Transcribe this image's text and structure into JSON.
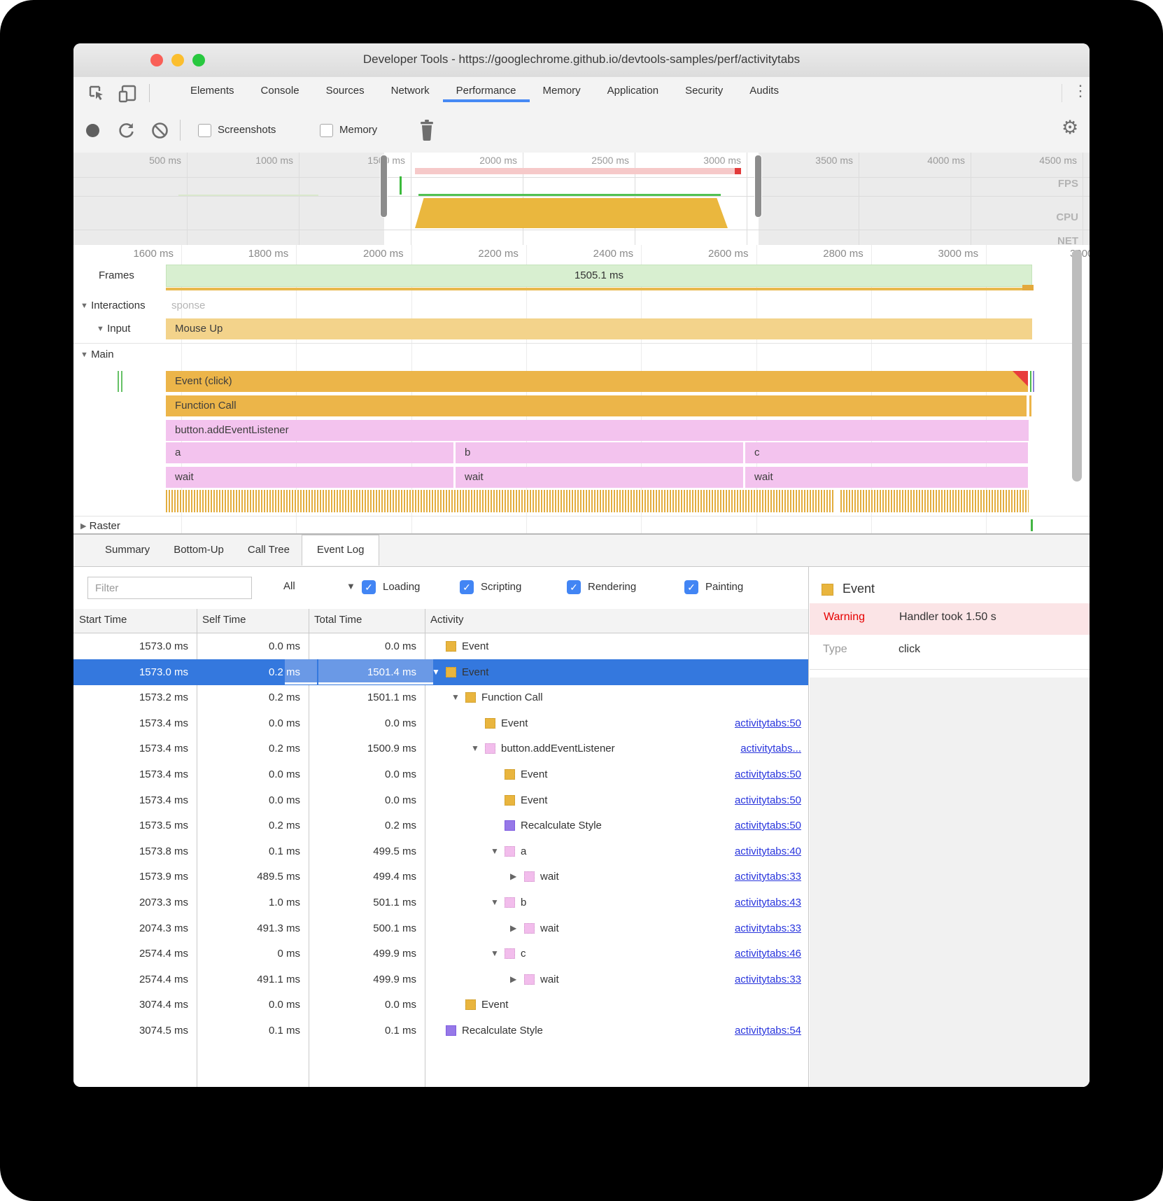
{
  "window": {
    "title": "Developer Tools - https://googlechrome.github.io/devtools-samples/perf/activitytabs"
  },
  "devtools_tabs": {
    "items": [
      "Elements",
      "Console",
      "Sources",
      "Network",
      "Performance",
      "Memory",
      "Application",
      "Security",
      "Audits"
    ],
    "active": "Performance"
  },
  "toolbar": {
    "screenshots_label": "Screenshots",
    "memory_label": "Memory"
  },
  "overview": {
    "ruler_labels": [
      "500 ms",
      "1000 ms",
      "1500 ms",
      "2000 ms",
      "2500 ms",
      "3000 ms",
      "3500 ms",
      "4000 ms",
      "4500 ms"
    ],
    "lane_labels": [
      "FPS",
      "CPU",
      "NET"
    ]
  },
  "main_ruler": [
    "1600 ms",
    "1800 ms",
    "2000 ms",
    "2200 ms",
    "2400 ms",
    "2600 ms",
    "2800 ms",
    "3000 ms",
    "3200"
  ],
  "tracks": {
    "frames": {
      "label": "Frames",
      "duration": "1505.1 ms"
    },
    "interactions": {
      "label": "Interactions",
      "ghost": "sponse"
    },
    "input": {
      "label": "Input",
      "bar": "Mouse Up"
    },
    "main": {
      "label": "Main",
      "event_bar": "Event (click)",
      "fncall_bar": "Function Call",
      "listener_bar": "button.addEventListener",
      "segments": [
        "a",
        "b",
        "c"
      ],
      "wait_label": "wait"
    },
    "raster": {
      "label": "Raster"
    }
  },
  "bottom_tabs": {
    "items": [
      "Summary",
      "Bottom-Up",
      "Call Tree",
      "Event Log"
    ],
    "active": "Event Log"
  },
  "filter": {
    "placeholder": "Filter",
    "all_label": "All",
    "checkboxes": [
      "Loading",
      "Scripting",
      "Rendering",
      "Painting"
    ]
  },
  "table": {
    "headers": [
      "Start Time",
      "Self Time",
      "Total Time",
      "Activity"
    ],
    "rows": [
      {
        "start": "1573.0 ms",
        "self": "0.0 ms",
        "total": "0.0 ms",
        "level": 0,
        "arrow": "",
        "icon": "yellow",
        "label": "Event",
        "link": "",
        "self_hl": "none",
        "total_hl": "none",
        "selected": false
      },
      {
        "start": "1573.0 ms",
        "self": "0.2 ms",
        "total": "1501.4 ms",
        "level": 0,
        "arrow": "down",
        "icon": "yellow",
        "label": "Event",
        "link": "",
        "self_hl": "ms",
        "total_hl": "full",
        "selected": true
      },
      {
        "start": "1573.2 ms",
        "self": "0.2 ms",
        "total": "1501.1 ms",
        "level": 1,
        "arrow": "down",
        "icon": "yellow",
        "label": "Function Call",
        "link": "",
        "self_hl": "ms",
        "total_hl": "full",
        "selected": false
      },
      {
        "start": "1573.4 ms",
        "self": "0.0 ms",
        "total": "0.0 ms",
        "level": 2,
        "arrow": "",
        "icon": "yellow",
        "label": "Event",
        "link": "activitytabs:50",
        "self_hl": "none",
        "total_hl": "none",
        "selected": false
      },
      {
        "start": "1573.4 ms",
        "self": "0.2 ms",
        "total": "1500.9 ms",
        "level": 2,
        "arrow": "down",
        "icon": "pink",
        "label": "button.addEventListener",
        "link": "activitytabs...",
        "self_hl": "ms",
        "total_hl": "full",
        "selected": false
      },
      {
        "start": "1573.4 ms",
        "self": "0.0 ms",
        "total": "0.0 ms",
        "level": 3,
        "arrow": "",
        "icon": "yellow",
        "label": "Event",
        "link": "activitytabs:50",
        "self_hl": "none",
        "total_hl": "none",
        "selected": false
      },
      {
        "start": "1573.4 ms",
        "self": "0.0 ms",
        "total": "0.0 ms",
        "level": 3,
        "arrow": "",
        "icon": "yellow",
        "label": "Event",
        "link": "activitytabs:50",
        "self_hl": "none",
        "total_hl": "none",
        "selected": false
      },
      {
        "start": "1573.5 ms",
        "self": "0.2 ms",
        "total": "0.2 ms",
        "level": 3,
        "arrow": "",
        "icon": "purple",
        "label": "Recalculate Style",
        "link": "activitytabs:50",
        "self_hl": "ms",
        "total_hl": "none",
        "selected": false
      },
      {
        "start": "1573.8 ms",
        "self": "0.1 ms",
        "total": "499.5 ms",
        "level": 3,
        "arrow": "down",
        "icon": "pink",
        "label": "a",
        "link": "activitytabs:40",
        "self_hl": "ms",
        "total_hl": "part",
        "selected": false
      },
      {
        "start": "1573.9 ms",
        "self": "489.5 ms",
        "total": "499.4 ms",
        "level": 4,
        "arrow": "right",
        "icon": "pink",
        "label": "wait",
        "link": "activitytabs:33",
        "self_hl": "full",
        "total_hl": "part",
        "selected": false
      },
      {
        "start": "2073.3 ms",
        "self": "1.0 ms",
        "total": "501.1 ms",
        "level": 3,
        "arrow": "down",
        "icon": "pink",
        "label": "b",
        "link": "activitytabs:43",
        "self_hl": "full",
        "total_hl": "part",
        "selected": false
      },
      {
        "start": "2074.3 ms",
        "self": "491.3 ms",
        "total": "500.1 ms",
        "level": 4,
        "arrow": "right",
        "icon": "pink",
        "label": "wait",
        "link": "activitytabs:33",
        "self_hl": "full",
        "total_hl": "part",
        "selected": false
      },
      {
        "start": "2574.4 ms",
        "self": "0 ms",
        "total": "499.9 ms",
        "level": 3,
        "arrow": "down",
        "icon": "pink",
        "label": "c",
        "link": "activitytabs:46",
        "self_hl": "none",
        "total_hl": "part",
        "selected": false
      },
      {
        "start": "2574.4 ms",
        "self": "491.1 ms",
        "total": "499.9 ms",
        "level": 4,
        "arrow": "right",
        "icon": "pink",
        "label": "wait",
        "link": "activitytabs:33",
        "self_hl": "full",
        "total_hl": "part",
        "selected": false
      },
      {
        "start": "3074.4 ms",
        "self": "0.0 ms",
        "total": "0.0 ms",
        "level": 1,
        "arrow": "",
        "icon": "yellow",
        "label": "Event",
        "link": "",
        "self_hl": "none",
        "total_hl": "none",
        "selected": false
      },
      {
        "start": "3074.5 ms",
        "self": "0.1 ms",
        "total": "0.1 ms",
        "level": 0,
        "arrow": "",
        "icon": "purple",
        "label": "Recalculate Style",
        "link": "activitytabs:54",
        "self_hl": "ms",
        "total_hl": "none",
        "selected": false
      }
    ]
  },
  "details": {
    "title": "Event",
    "warning_label": "Warning",
    "warning_text": "Handler took 1.50 s",
    "type_label": "Type",
    "type_value": "click"
  },
  "colors": {
    "accent_blue": "#4689f4",
    "selection_blue": "#3478de",
    "link_blue": "#2a36dd",
    "event_yellow": "#ecb549",
    "script_pink": "#f3c3ee",
    "purple": "#9678e8",
    "frames_green": "#d8efd0",
    "warning_red": "#e60000",
    "cpu_yellow": "#eab73e"
  }
}
